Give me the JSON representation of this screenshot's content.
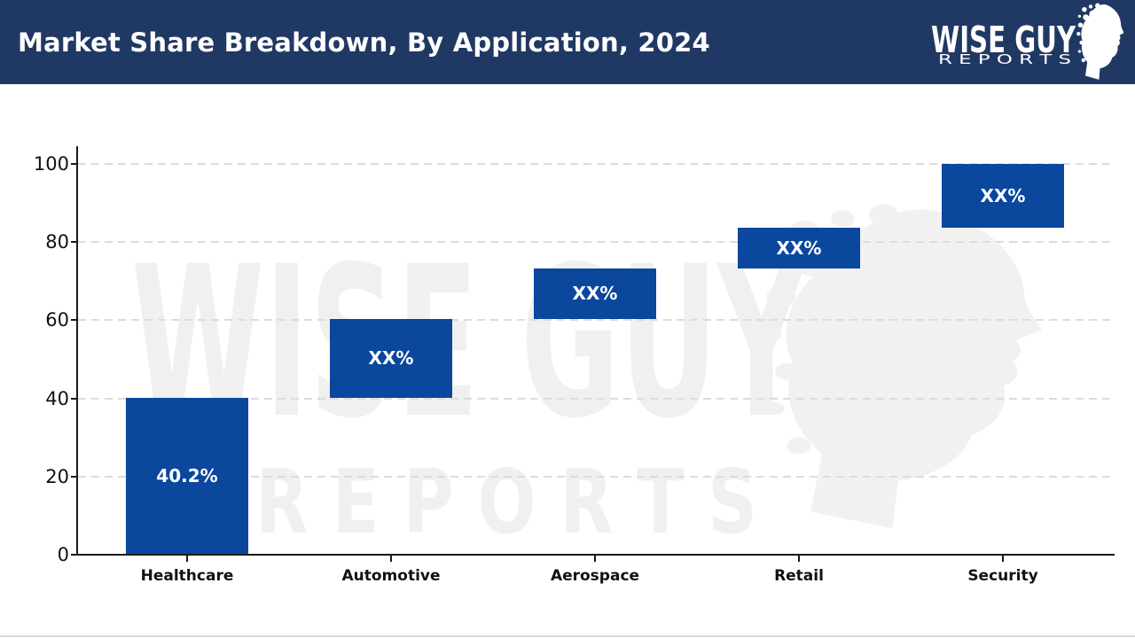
{
  "header": {
    "title": "Market Share Breakdown, By Application, 2024",
    "background_color": "#203864",
    "logo": {
      "line1": "WISE GUY",
      "line2": "R E P O R T S"
    }
  },
  "watermark": {
    "line1": "WISE GUY",
    "line2": "R E P O R T S"
  },
  "chart_data": {
    "type": "bar",
    "subtype": "waterfall",
    "title": "Market Share Breakdown, By Application, 2024",
    "categories": [
      "Healthcare",
      "Automotive",
      "Aerospace",
      "Retail",
      "Security"
    ],
    "segments": [
      {
        "category": "Healthcare",
        "start": 0,
        "end": 40.2,
        "label": "40.2%"
      },
      {
        "category": "Automotive",
        "start": 40.2,
        "end": 60.3,
        "label": "XX%"
      },
      {
        "category": "Aerospace",
        "start": 60.3,
        "end": 73.3,
        "label": "XX%"
      },
      {
        "category": "Retail",
        "start": 73.3,
        "end": 83.7,
        "label": "XX%"
      },
      {
        "category": "Security",
        "start": 83.7,
        "end": 100,
        "label": "XX%"
      }
    ],
    "yticks": [
      0,
      20,
      40,
      60,
      80,
      100
    ],
    "ylim": [
      0,
      100
    ],
    "xlabel": "",
    "ylabel": "",
    "grid": true,
    "legend": false,
    "bar_color": "#0b479d",
    "bar_label_color": "#ffffff",
    "gridline_color": "#dcdcdc",
    "axis_color": "#1a1a1a",
    "watermark_color": "#f0f0f1"
  }
}
